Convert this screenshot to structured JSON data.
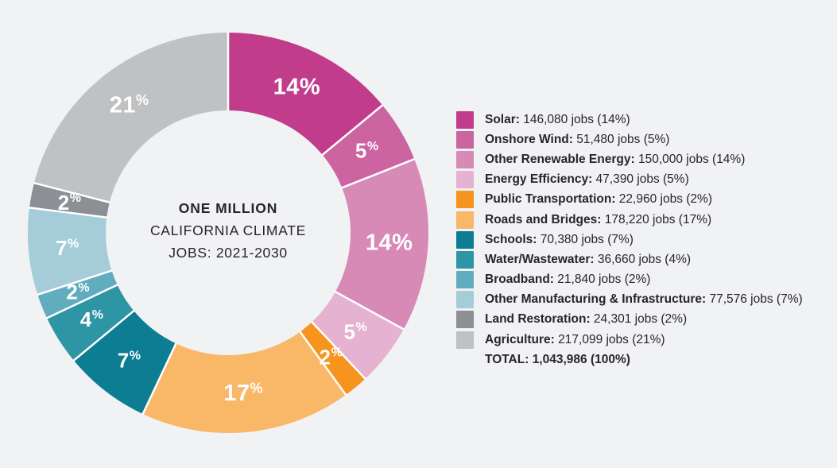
{
  "page": {
    "background": "#f1f2f3",
    "text_color": "#28242b",
    "separator_color": "#ffffff"
  },
  "chart_data": {
    "type": "pie",
    "variant": "donut",
    "center_title": {
      "line1": "ONE MILLION",
      "line2": "CALIFORNIA CLIMATE",
      "line3": "JOBS: 2021-2030"
    },
    "unit_word": "jobs",
    "legend_position": "right",
    "segments": [
      {
        "name": "Solar",
        "jobs": "146,080",
        "pct": 14,
        "color": "#c23c8c",
        "slice_label": "14%",
        "full_size_pct": true
      },
      {
        "name": "Onshore Wind",
        "jobs": "51,480",
        "pct": 5,
        "color": "#cb64a0",
        "slice_label": "5%",
        "full_size_pct": false
      },
      {
        "name": "Other Renewable Energy",
        "jobs": "150,000",
        "pct": 14,
        "color": "#d78ab6",
        "slice_label": "14%",
        "full_size_pct": true
      },
      {
        "name": "Energy Efficiency",
        "jobs": "47,390",
        "pct": 5,
        "color": "#e5b2d1",
        "slice_label": "5%",
        "full_size_pct": false
      },
      {
        "name": "Public Transportation",
        "jobs": "22,960",
        "pct": 2,
        "color": "#f6941e",
        "slice_label": "2%",
        "full_size_pct": false
      },
      {
        "name": "Roads and Bridges",
        "jobs": "178,220",
        "pct": 17,
        "color": "#f9b768",
        "slice_label": "17%",
        "full_size_pct": false
      },
      {
        "name": "Schools",
        "jobs": "70,380",
        "pct": 7,
        "color": "#0c7d92",
        "slice_label": "7%",
        "full_size_pct": false
      },
      {
        "name": "Water/Wastewater",
        "jobs": "36,660",
        "pct": 4,
        "color": "#2d95a3",
        "slice_label": "4%",
        "full_size_pct": false
      },
      {
        "name": "Broadband",
        "jobs": "21,840",
        "pct": 2,
        "color": "#61adbf",
        "slice_label": "2%",
        "full_size_pct": false
      },
      {
        "name": "Other Manufacturing & Infrastructure",
        "jobs": "77,576",
        "pct": 7,
        "color": "#a5ccd9",
        "slice_label": "7%",
        "full_size_pct": false
      },
      {
        "name": "Land Restoration",
        "jobs": "24,301",
        "pct": 2,
        "color": "#8c8f93",
        "slice_label": "2%",
        "full_size_pct": false
      },
      {
        "name": "Agriculture",
        "jobs": "217,099",
        "pct": 21,
        "color": "#bfc1c3",
        "slice_label": "21%",
        "full_size_pct": false
      }
    ],
    "total": {
      "label": "TOTAL:",
      "value": "1,043,986 (100%)"
    }
  }
}
